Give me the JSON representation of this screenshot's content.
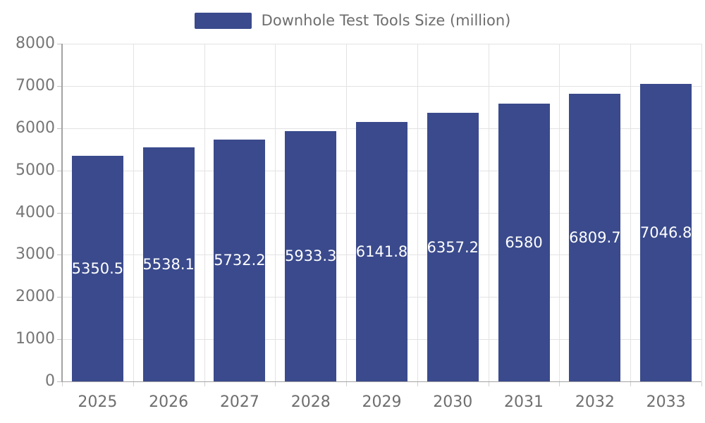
{
  "legend": {
    "label": "Downhole Test Tools Size (million)",
    "position": "top"
  },
  "colors": {
    "bar": "#3a4a8c",
    "value_label_text": "#ffffff",
    "grid": "#e3e3e3",
    "axis_line": "#a3a3a3",
    "axis_text": "#6e6e6e",
    "y_axis_text": "#767676",
    "legend_text": "#6e6e6e",
    "background": "#ffffff"
  },
  "chart_data": {
    "type": "bar",
    "title": "",
    "xlabel": "",
    "ylabel": "",
    "categories": [
      "2025",
      "2026",
      "2027",
      "2028",
      "2029",
      "2030",
      "2031",
      "2032",
      "2033"
    ],
    "series": [
      {
        "name": "Downhole Test Tools Size (million)",
        "values": [
          5350.5,
          5538.1,
          5732.2,
          5933.3,
          6141.8,
          6357.2,
          6580,
          6809.7,
          7046.8
        ],
        "value_labels": [
          "5350.5",
          "5538.1",
          "5732.2",
          "5933.3",
          "6141.8",
          "6357.2",
          "6580",
          "6809.7",
          "7046.8"
        ],
        "color": "#3a4a8c"
      }
    ],
    "ylim": [
      0,
      8000
    ],
    "ytick_labels": [
      "0",
      "1000",
      "2000",
      "3000",
      "4000",
      "5000",
      "6000",
      "7000",
      "8000"
    ],
    "grid": true,
    "legend_position": "top"
  }
}
